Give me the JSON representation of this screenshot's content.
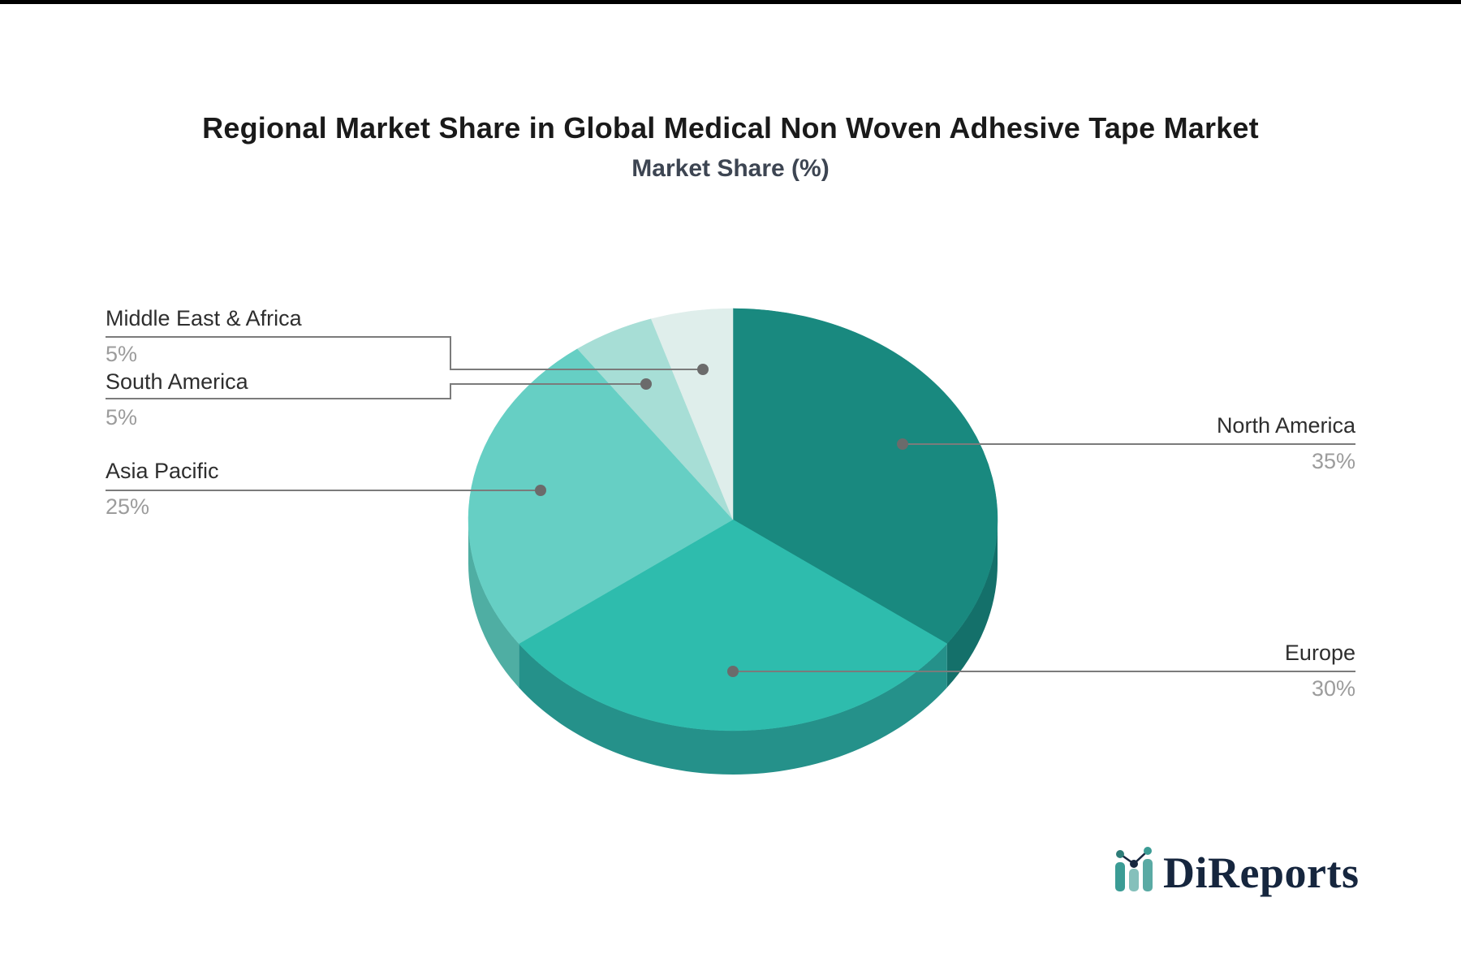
{
  "page": {
    "title": "Regional Market Share in Global Medical Non Woven Adhesive Tape Market",
    "subtitle": "Market Share (%)"
  },
  "branding": {
    "logo_text": "DiReports",
    "logo_icon": "bar-chart-trend-icon",
    "logo_text_color": "#16263E",
    "logo_accent_color": "#3B9C95"
  },
  "chart_data": {
    "type": "pie",
    "title": "Regional Market Share in Global Medical Non Woven Adhesive Tape Market",
    "subtitle": "Market Share (%)",
    "unit": "%",
    "effect": "3d-depth",
    "start_angle_deg": 0,
    "direction": "clockwise",
    "legend_position": "callout-labels",
    "slices": [
      {
        "label": "North America",
        "value": 35,
        "display_value": "35%",
        "color": "#19897F",
        "depth_color": "#14706A",
        "label_side": "right"
      },
      {
        "label": "Europe",
        "value": 30,
        "display_value": "30%",
        "color": "#2EBCAD",
        "depth_color": "#25918A",
        "label_side": "right"
      },
      {
        "label": "Asia Pacific",
        "value": 25,
        "display_value": "25%",
        "color": "#66CFC4",
        "depth_color": "#4FAEA3",
        "label_side": "left"
      },
      {
        "label": "South America",
        "value": 5,
        "display_value": "5%",
        "color": "#A7DED6",
        "depth_color": "#A7DED6",
        "label_side": "left"
      },
      {
        "label": "Middle East & Africa",
        "value": 5,
        "display_value": "5%",
        "color": "#DFEEEB",
        "depth_color": "#DFEEEB",
        "label_side": "left"
      }
    ],
    "leader_line_color": "#7B7B7B",
    "leader_dot_color": "#6B6B6B",
    "label_text_color": "#2E2E2E",
    "value_text_color": "#9C9C9C"
  }
}
